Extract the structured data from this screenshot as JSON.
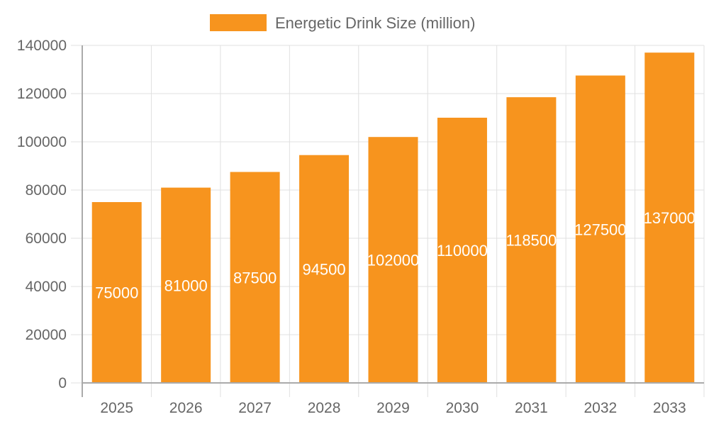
{
  "chart_data": {
    "type": "bar",
    "title": "",
    "xlabel": "",
    "ylabel": "",
    "categories": [
      "2025",
      "2026",
      "2027",
      "2028",
      "2029",
      "2030",
      "2031",
      "2032",
      "2033"
    ],
    "series": [
      {
        "name": "Energetic Drink Size (million)",
        "values": [
          75000,
          81000,
          87500,
          94500,
          102000,
          110000,
          118500,
          127500,
          137000
        ],
        "color": "#f7941e"
      }
    ],
    "ylim": [
      0,
      140000
    ],
    "yticks": [
      0,
      20000,
      40000,
      60000,
      80000,
      100000,
      120000,
      140000
    ],
    "grid": true,
    "legend": "top",
    "data_labels": true
  }
}
